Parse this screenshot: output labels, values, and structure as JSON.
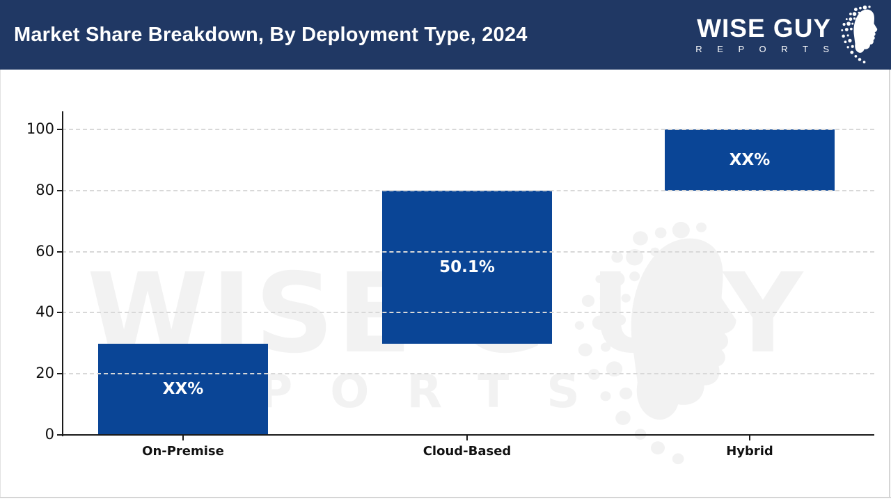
{
  "header": {
    "title": "Market Share Breakdown, By Deployment Type, 2024",
    "bg_color": "#203864",
    "logo": {
      "line1": "WISE GUY",
      "line2": "R E P O R T S"
    }
  },
  "watermark": {
    "line1": "WISE G U Y",
    "line2": "REPORTS"
  },
  "chart_data": {
    "type": "bar",
    "subtype": "waterfall",
    "title": "Market Share Breakdown, By Deployment Type, 2024",
    "categories": [
      "On-Premise",
      "Cloud-Based",
      "Hybrid"
    ],
    "segments": [
      {
        "category": "On-Premise",
        "start": 0,
        "end": 29.9,
        "label": "XX%"
      },
      {
        "category": "Cloud-Based",
        "start": 29.9,
        "end": 80,
        "label": "50.1%"
      },
      {
        "category": "Hybrid",
        "start": 80,
        "end": 100,
        "label": "XX%"
      }
    ],
    "ylim": [
      0,
      100
    ],
    "yticks": [
      0,
      20,
      40,
      60,
      80,
      100
    ],
    "grid": "horizontal-dashed",
    "legend": "none",
    "bar_color": "#0a4596",
    "bar_label_color": "#ffffff",
    "axis_color": "#1a1a1a",
    "gridline_color": "#d8d8d8"
  }
}
